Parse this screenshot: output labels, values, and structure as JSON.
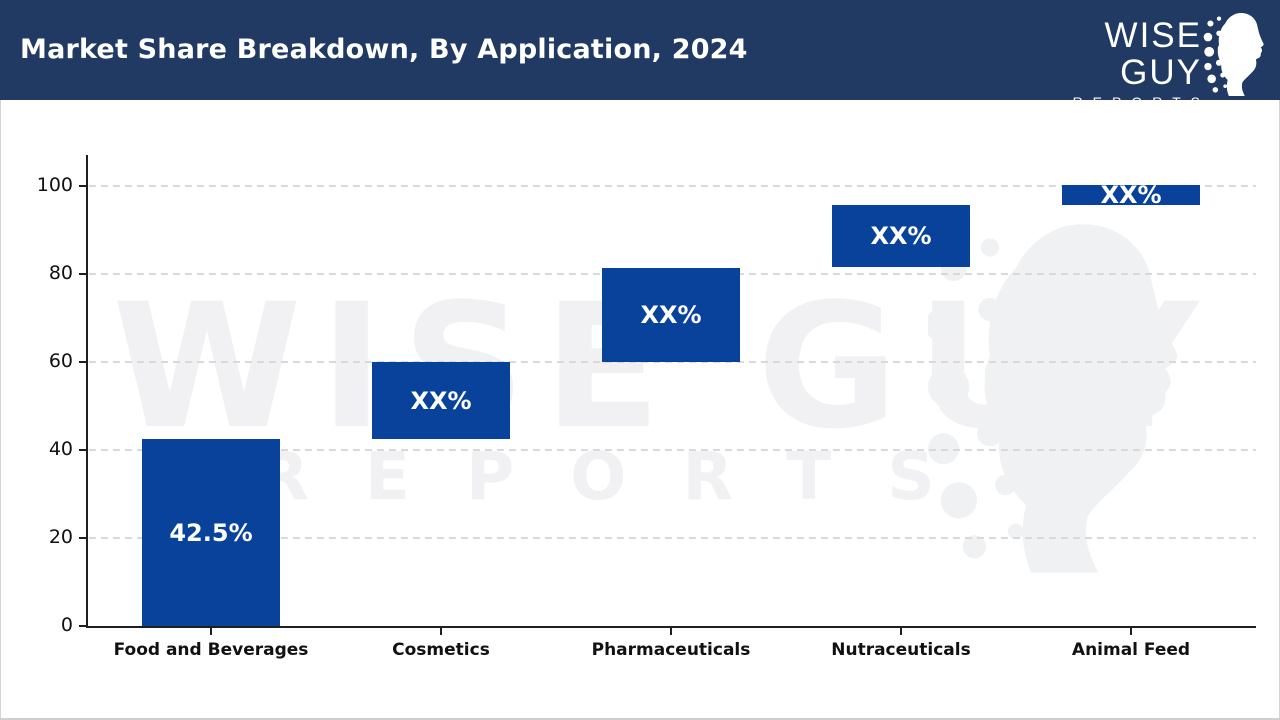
{
  "header": {
    "title": "Market Share Breakdown, By Application, 2024",
    "logo_line1": "WISE GUY",
    "logo_line2": "REPORTS"
  },
  "watermark": {
    "line1": "WISE GUY",
    "line2": "REPORTS"
  },
  "colors": {
    "header_bg": "#203a64",
    "bar": "#08429b",
    "bar_label": "#ffffff",
    "grid": "#d9d9d9",
    "watermark": "#f1f1f3"
  },
  "chart_data": {
    "type": "bar",
    "subtype": "waterfall",
    "title": "Market Share Breakdown, By Application, 2024",
    "categories": [
      "Food and Beverages",
      "Cosmetics",
      "Pharmaceuticals",
      "Nutraceuticals",
      "Animal Feed"
    ],
    "segments": [
      {
        "category": "Food and Beverages",
        "start": 0,
        "end": 42.5,
        "value_label": "42.5%"
      },
      {
        "category": "Cosmetics",
        "start": 42.5,
        "end": 60,
        "value_label": "XX%"
      },
      {
        "category": "Pharmaceuticals",
        "start": 60,
        "end": 81.4,
        "value_label": "XX%"
      },
      {
        "category": "Nutraceuticals",
        "start": 81.6,
        "end": 95.7,
        "value_label": "XX%"
      },
      {
        "category": "Animal Feed",
        "start": 95.7,
        "end": 100.3,
        "value_label": "XX%"
      }
    ],
    "xlabel": "",
    "ylabel": "",
    "yticks": [
      0,
      20,
      40,
      60,
      80,
      100
    ],
    "ylim": [
      0,
      107
    ],
    "grid": true,
    "legend": false,
    "bar_color": "#08429b",
    "bar_label_color": "#ffffff"
  }
}
